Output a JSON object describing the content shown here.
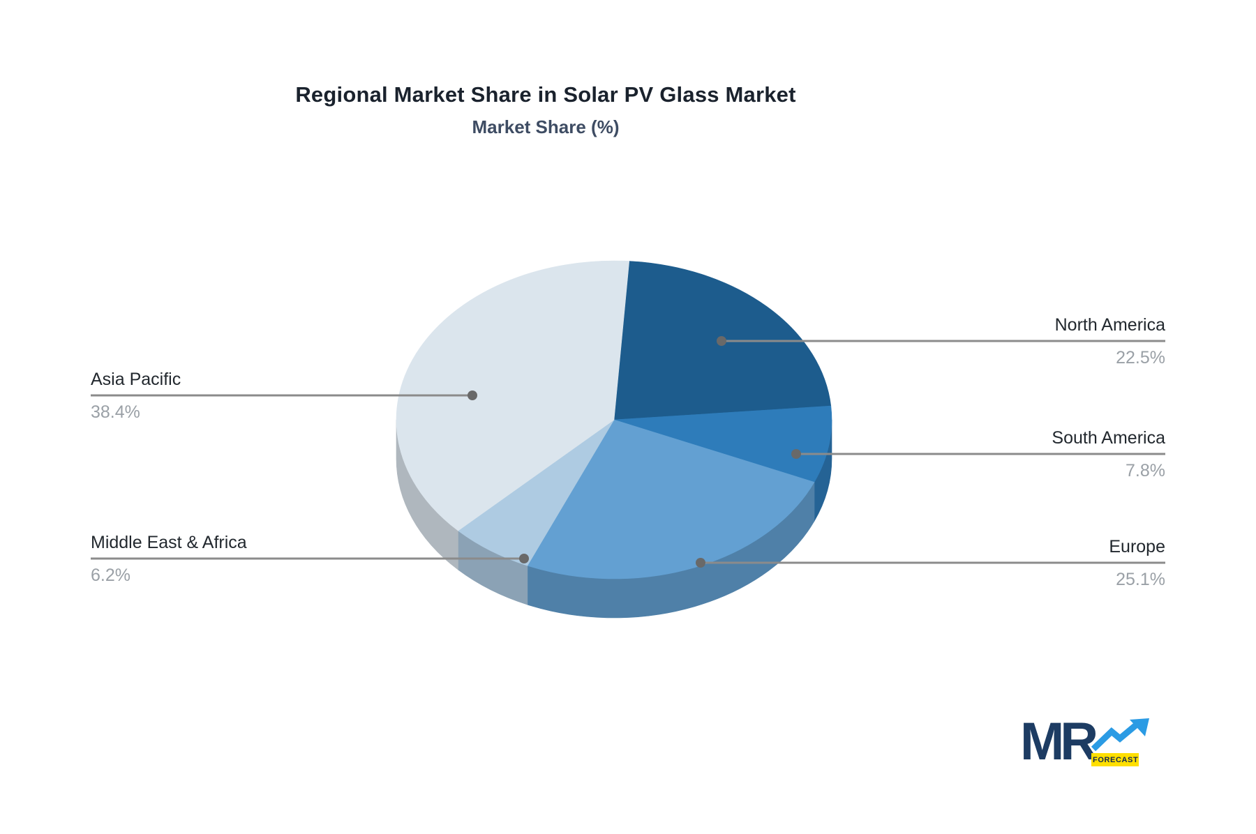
{
  "title": "Regional Market Share in Solar PV Glass Market",
  "subtitle": "Market Share (%)",
  "chart_data": {
    "type": "pie",
    "style": "3d",
    "title": "Regional Market Share in Solar PV Glass Market",
    "series_name": "Market Share (%)",
    "direction": "clockwise",
    "start_at": "12 o'clock",
    "legend_position": "none",
    "slices": [
      {
        "label": "North America",
        "value": 22.5,
        "display": "22.5%",
        "color": "#1d5c8d",
        "label_side": "right"
      },
      {
        "label": "South America",
        "value": 7.8,
        "display": "7.8%",
        "color": "#2e7cba",
        "label_side": "right"
      },
      {
        "label": "Europe",
        "value": 25.1,
        "display": "25.1%",
        "color": "#63a0d2",
        "label_side": "right"
      },
      {
        "label": "Middle East & Africa",
        "value": 6.2,
        "display": "6.2%",
        "color": "#aecbe2",
        "label_side": "left"
      },
      {
        "label": "Asia Pacific",
        "value": 38.4,
        "display": "38.4%",
        "color": "#dbe5ed",
        "label_side": "left"
      }
    ],
    "connector_color": "#8b8b8b",
    "anchor_dot_color": "#696969",
    "label_text_color": "#22282e",
    "percent_text_color": "#9aa0a6"
  },
  "logo": {
    "text": "MR",
    "badge": "FORECAST",
    "text_color": "#1d3c63",
    "arrow_color": "#2b9be4",
    "badge_bg": "#ffdf00"
  }
}
